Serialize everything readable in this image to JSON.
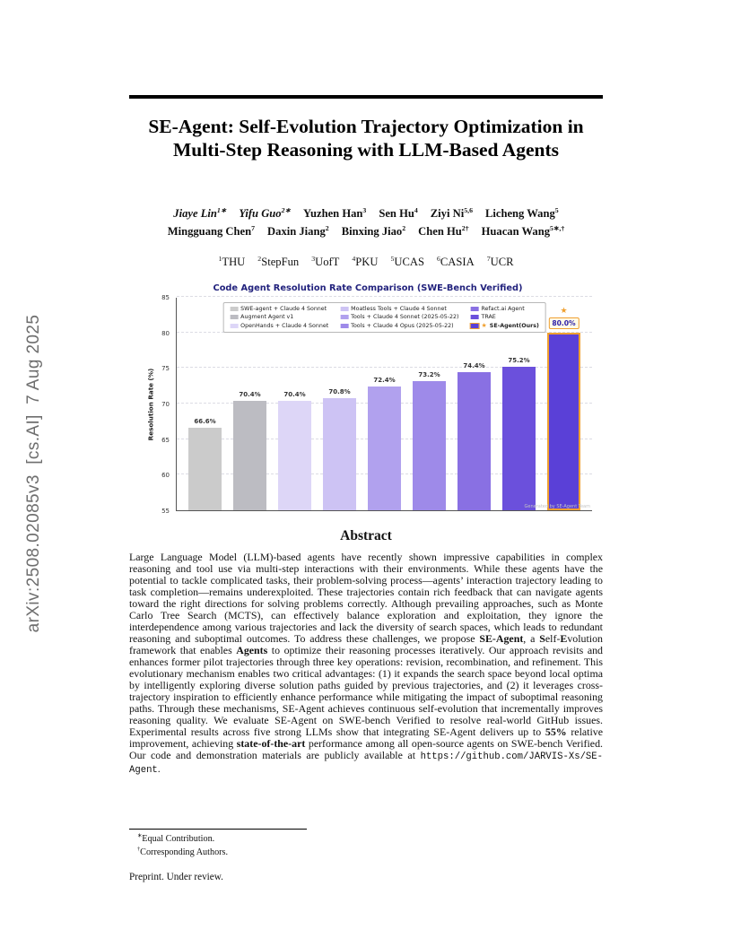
{
  "arxiv_watermark": "arXiv:2508.02085v3  [cs.AI]  7 Aug 2025",
  "title_line1": "SE-Agent: Self-Evolution Trajectory Optimization in",
  "title_line2": "Multi-Step Reasoning with LLM-Based Agents",
  "authors": {
    "row1": [
      {
        "name": "Jiaye Lin",
        "sup": "1∗",
        "italic": true
      },
      {
        "name": "Yifu Guo",
        "sup": "2∗",
        "italic": true
      },
      {
        "name": "Yuzhen Han",
        "sup": "3",
        "italic": false
      },
      {
        "name": "Sen Hu",
        "sup": "4",
        "italic": false
      },
      {
        "name": "Ziyi Ni",
        "sup": "5,6",
        "italic": false
      },
      {
        "name": "Licheng Wang",
        "sup": "5",
        "italic": false
      }
    ],
    "row2": [
      {
        "name": "Mingguang Chen",
        "sup": "7",
        "italic": false
      },
      {
        "name": "Daxin Jiang",
        "sup": "2",
        "italic": false
      },
      {
        "name": "Binxing Jiao",
        "sup": "2",
        "italic": false
      },
      {
        "name": "Chen Hu",
        "sup": "2†",
        "italic": false
      },
      {
        "name": "Huacan Wang",
        "sup": "5∗,†",
        "italic": false
      }
    ]
  },
  "affiliations": [
    {
      "sup": "1",
      "name": "THU"
    },
    {
      "sup": "2",
      "name": "StepFun"
    },
    {
      "sup": "3",
      "name": "UofT"
    },
    {
      "sup": "4",
      "name": "PKU"
    },
    {
      "sup": "5",
      "name": "UCAS"
    },
    {
      "sup": "6",
      "name": "CASIA"
    },
    {
      "sup": "7",
      "name": "UCR"
    }
  ],
  "chart_data": {
    "type": "bar",
    "title": "Code Agent Resolution Rate Comparison (SWE-Bench Verified)",
    "ylabel": "Resolution Rate (%)",
    "ylim": [
      55,
      85
    ],
    "yticks": [
      55,
      60,
      65,
      70,
      75,
      80,
      85
    ],
    "grid": true,
    "legend_position": "top-center",
    "watermark": "Generated by SE-Agent Team",
    "highlight_color": "#f0a030",
    "series": [
      {
        "name": "SWE-agent + Claude 4 Sonnet",
        "value": 66.6,
        "color": "#cbcbcb",
        "highlight": false,
        "star": false
      },
      {
        "name": "Augment Agent v1",
        "value": 70.4,
        "color": "#bcbcc2",
        "highlight": false,
        "star": false
      },
      {
        "name": "OpenHands + Claude 4 Sonnet",
        "value": 70.4,
        "color": "#ddd6f7",
        "highlight": false,
        "star": false
      },
      {
        "name": "Moatless Tools + Claude 4 Sonnet",
        "value": 70.8,
        "color": "#cdc3f4",
        "highlight": false,
        "star": false
      },
      {
        "name": "Tools + Claude 4 Sonnet (2025-05-22)",
        "value": 72.4,
        "color": "#b1a1ee",
        "highlight": false,
        "star": false
      },
      {
        "name": "Tools + Claude 4 Opus (2025-05-22)",
        "value": 73.2,
        "color": "#9e8ae9",
        "highlight": false,
        "star": false
      },
      {
        "name": "Refact.ai Agent",
        "value": 74.4,
        "color": "#8970e3",
        "highlight": false,
        "star": false
      },
      {
        "name": "TRAE",
        "value": 75.2,
        "color": "#6b50dc",
        "highlight": false,
        "star": false
      },
      {
        "name": "SE-Agent(Ours)",
        "value": 80.0,
        "color": "#5a40d7",
        "highlight": true,
        "star": true
      }
    ]
  },
  "abstract": {
    "heading": "Abstract",
    "segments": [
      {
        "text": "Large Language Model (LLM)-based agents have recently shown impressive capabilities in complex reasoning and tool use via multi-step interactions with their environments. While these agents have the potential to tackle complicated tasks, their problem-solving process—agents’ interaction trajectory leading to task completion—remains underexploited. These trajectories contain rich feedback that can navigate agents toward the right directions for solving problems correctly. Although prevailing approaches, such as Monte Carlo Tree Search (MCTS), can effectively balance exploration and exploitation, they ignore the interdependence among various trajectories and lack the diversity of search spaces, which leads to redundant reasoning and suboptimal outcomes. To address these challenges, we propose "
      },
      {
        "text": "SE-Agent",
        "bold": true
      },
      {
        "text": ", a "
      },
      {
        "text": "S",
        "bold": true
      },
      {
        "text": "elf-"
      },
      {
        "text": "E",
        "bold": true
      },
      {
        "text": "volution framework that enables "
      },
      {
        "text": "Agents",
        "bold": true
      },
      {
        "text": " to optimize their reasoning processes iteratively. Our approach revisits and enhances former pilot trajectories through three key operations: revision, recombination, and refinement. This evolutionary mechanism enables two critical advantages: (1) it expands the search space beyond local optima by intelligently exploring diverse solution paths guided by previous trajectories, and (2) it leverages cross-trajectory inspiration to efficiently enhance performance while mitigating the impact of suboptimal reasoning paths. Through these mechanisms, SE-Agent achieves continuous self-evolution that incrementally improves reasoning quality. We evaluate SE-Agent on SWE-bench Verified to resolve real-world GitHub issues. Experimental results across five strong LLMs show that integrating SE-Agent delivers up to "
      },
      {
        "text": "55%",
        "bold": true
      },
      {
        "text": " relative improvement, achieving "
      },
      {
        "text": "state-of-the-art",
        "bold": true
      },
      {
        "text": " performance among all open-source agents on SWE-bench Verified. Our code and demonstration materials are publicly available at "
      },
      {
        "text": "https://github.com/JARVIS-Xs/SE-Agent",
        "mono": true,
        "link": true
      },
      {
        "text": "."
      }
    ]
  },
  "footnotes": [
    {
      "sup": "∗",
      "text": "Equal Contribution."
    },
    {
      "sup": "†",
      "text": "Corresponding Authors."
    }
  ],
  "footer": "Preprint. Under review."
}
